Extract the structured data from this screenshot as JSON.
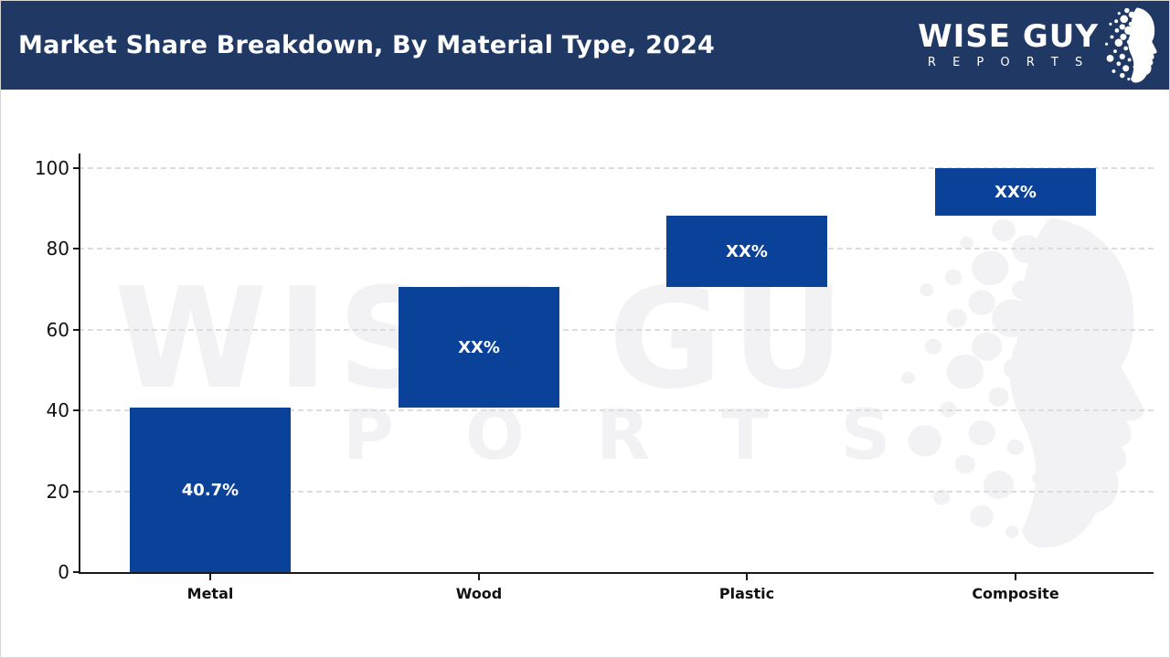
{
  "header": {
    "title": "Market Share Breakdown, By Material Type, 2024",
    "background": "#1f3864",
    "logo": {
      "line1": "WISE GUY",
      "line2": "R E P O R T S"
    }
  },
  "watermark": {
    "line1": "WISE GU",
    "line2": "P O R T S"
  },
  "chart_data": {
    "type": "bar",
    "subtype": "waterfall",
    "title": "Market Share Breakdown, By Material Type, 2024",
    "categories": [
      "Metal",
      "Wood",
      "Plastic",
      "Composite"
    ],
    "segments": [
      {
        "category": "Metal",
        "start": 0,
        "end": 40.7,
        "label": "40.7%"
      },
      {
        "category": "Wood",
        "start": 40.7,
        "end": 70.5,
        "label": "XX%"
      },
      {
        "category": "Plastic",
        "start": 70.5,
        "end": 88.2,
        "label": "XX%"
      },
      {
        "category": "Composite",
        "start": 88.2,
        "end": 100,
        "label": "XX%"
      }
    ],
    "xlabel": "",
    "ylabel": "",
    "ylim": [
      0,
      100
    ],
    "yticks": [
      0,
      20,
      40,
      60,
      80,
      100
    ],
    "grid": "horizontal-dashed",
    "legend": "none",
    "bar_color": "#0a4199",
    "bar_label_color": "#ffffff",
    "axis_color": "#1a1a1a",
    "gridline_color": "#dcdcdc"
  }
}
